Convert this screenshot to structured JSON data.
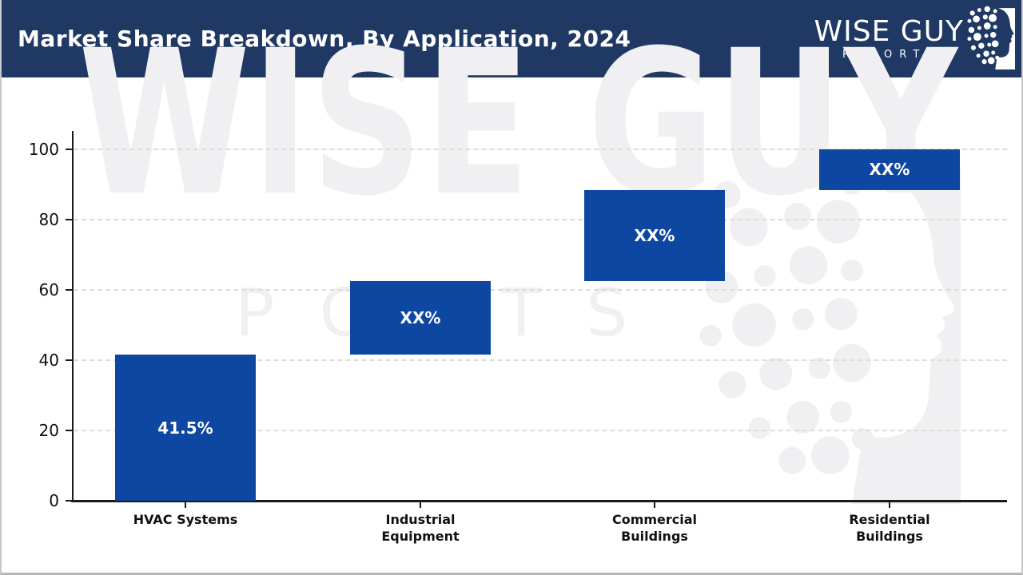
{
  "header": {
    "title": "Market Share Breakdown, By Application, 2024",
    "logo": {
      "line1": "WISE GUY",
      "line2": "REPORTS"
    }
  },
  "watermark": {
    "line1": "WISE GUY",
    "line2": "PORTS"
  },
  "colors": {
    "header_bg": "#1f3864",
    "bar": "#0d47a1",
    "grid": "#dcdcdc",
    "axis": "#1a1a1a",
    "bar_label": "#ffffff",
    "watermark": "#f0f0f2"
  },
  "chart_data": {
    "type": "waterfall",
    "title": "Market Share Breakdown, By Application, 2024",
    "xlabel": "",
    "ylabel": "",
    "ylim": [
      0,
      100
    ],
    "yticks": [
      0,
      20,
      40,
      60,
      80,
      100
    ],
    "grid": "horizontal dashed",
    "legend": "none",
    "categories": [
      "HVAC Systems",
      "Industrial Equipment",
      "Commercial Buildings",
      "Residential Buildings"
    ],
    "segments": [
      {
        "category": "HVAC Systems",
        "label_lines": [
          "HVAC Systems"
        ],
        "start": 0,
        "end": 41.5,
        "value_label": "41.5%"
      },
      {
        "category": "Industrial Equipment",
        "label_lines": [
          "Industrial",
          "Equipment"
        ],
        "start": 41.5,
        "end": 62.5,
        "value_label": "XX%"
      },
      {
        "category": "Commercial Buildings",
        "label_lines": [
          "Commercial",
          "Buildings"
        ],
        "start": 62.5,
        "end": 88.5,
        "value_label": "XX%"
      },
      {
        "category": "Residential Buildings",
        "label_lines": [
          "Residential",
          "Buildings"
        ],
        "start": 88.5,
        "end": 100,
        "value_label": "XX%"
      }
    ]
  }
}
